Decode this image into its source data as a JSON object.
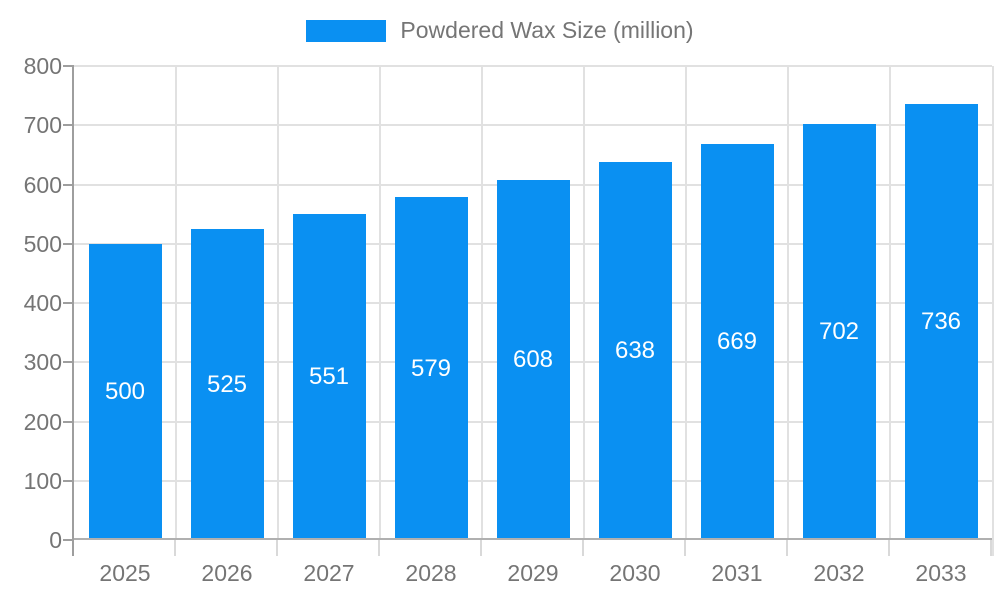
{
  "legend": {
    "label": "Powdered Wax Size (million)"
  },
  "chart_data": {
    "type": "bar",
    "title": "",
    "xlabel": "",
    "ylabel": "",
    "categories": [
      "2025",
      "2026",
      "2027",
      "2028",
      "2029",
      "2030",
      "2031",
      "2032",
      "2033"
    ],
    "values": [
      500,
      525,
      551,
      579,
      608,
      638,
      669,
      702,
      736
    ],
    "series_name": "Powdered Wax Size (million)",
    "yticks": [
      0,
      100,
      200,
      300,
      400,
      500,
      600,
      700,
      800
    ],
    "ylim": [
      0,
      800
    ],
    "grid": true,
    "legend_position": "top",
    "bar_labels_shown": true
  },
  "style": {
    "bar_color": "#0a90f2",
    "bar_label_color": "#ffffff",
    "axis_label_color": "#757575",
    "legend_text_color": "#757575",
    "gridline_color": "#e1e1e1",
    "y_axis_line_color": "#9e9e9e",
    "x_axis_line_color": "#b0b0b0",
    "right_border_color": "#e1e1e1",
    "y_tick_color": "#9e9e9e",
    "x_tick_color": "#d9d9d9",
    "background": "#ffffff"
  }
}
